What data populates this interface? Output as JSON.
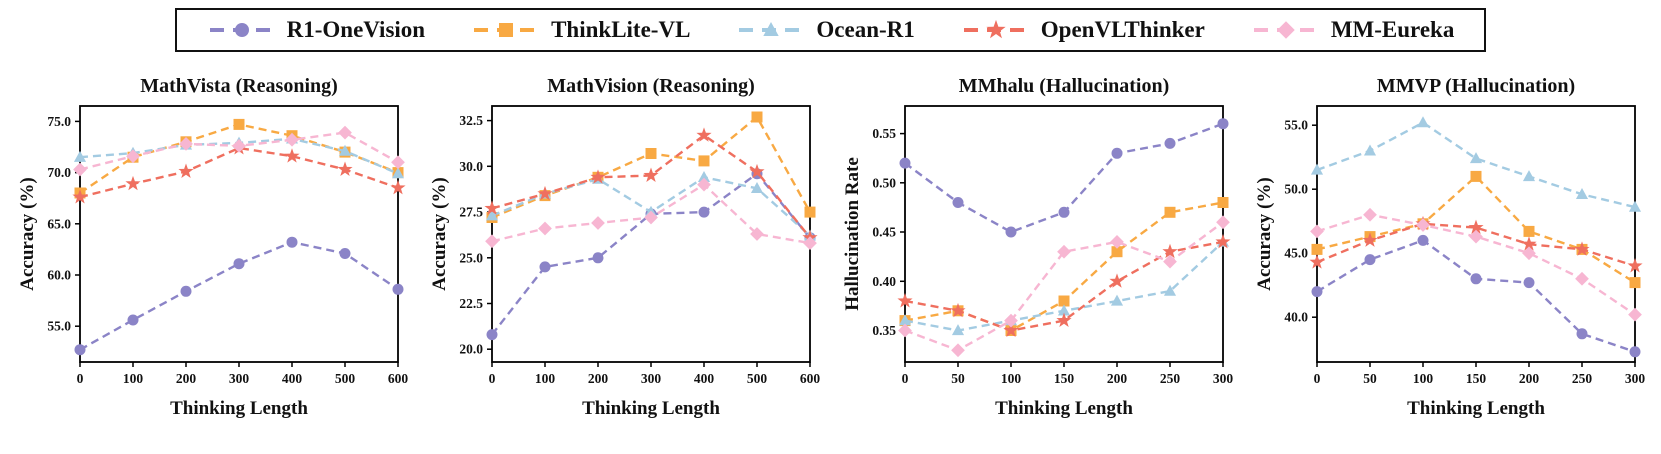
{
  "legend": {
    "items": [
      {
        "label": "R1-OneVision",
        "color": "#8b84c7",
        "marker": "circle"
      },
      {
        "label": "ThinkLite-VL",
        "color": "#f8a943",
        "marker": "square"
      },
      {
        "label": "Ocean-R1",
        "color": "#a3cbe2",
        "marker": "triangle"
      },
      {
        "label": "OpenVLThinker",
        "color": "#ef6f5f",
        "marker": "star"
      },
      {
        "label": "MM-Eureka",
        "color": "#f7b6d2",
        "marker": "diamond"
      }
    ]
  },
  "chart_data": [
    {
      "type": "line",
      "title": "MathVista (Reasoning)",
      "xlabel": "Thinking Length",
      "ylabel": "Accuracy (%)",
      "x": [
        0,
        100,
        200,
        300,
        400,
        500,
        600
      ],
      "ylim": [
        51.5,
        76.5
      ],
      "yticks": [
        55.0,
        60.0,
        65.0,
        70.0,
        75.0
      ],
      "ytick_labels": [
        "55.0",
        "60.0",
        "65.0",
        "70.0",
        "75.0"
      ],
      "series": [
        {
          "name": "R1-OneVision",
          "values": [
            52.7,
            55.6,
            58.4,
            61.1,
            63.2,
            62.1,
            58.6
          ]
        },
        {
          "name": "ThinkLite-VL",
          "values": [
            68.0,
            71.5,
            73.0,
            74.7,
            73.6,
            72.0,
            70.0
          ]
        },
        {
          "name": "Ocean-R1",
          "values": [
            71.5,
            71.9,
            72.7,
            72.9,
            73.3,
            72.1,
            69.9
          ]
        },
        {
          "name": "OpenVLThinker",
          "values": [
            67.6,
            68.9,
            70.1,
            72.4,
            71.6,
            70.3,
            68.5
          ]
        },
        {
          "name": "MM-Eureka",
          "values": [
            70.3,
            71.6,
            72.8,
            72.6,
            73.2,
            73.9,
            71.0
          ]
        }
      ]
    },
    {
      "type": "line",
      "title": "MathVision (Reasoning)",
      "xlabel": "Thinking Length",
      "ylabel": "Accuracy (%)",
      "x": [
        0,
        100,
        200,
        300,
        400,
        500,
        600
      ],
      "ylim": [
        19.3,
        33.3
      ],
      "yticks": [
        20.0,
        22.5,
        25.0,
        27.5,
        30.0,
        32.5
      ],
      "ytick_labels": [
        "20.0",
        "22.5",
        "25.0",
        "27.5",
        "30.0",
        "32.5"
      ],
      "series": [
        {
          "name": "R1-OneVision",
          "values": [
            20.8,
            24.5,
            25.0,
            27.4,
            27.5,
            29.6,
            26.1
          ]
        },
        {
          "name": "ThinkLite-VL",
          "values": [
            27.2,
            28.4,
            29.4,
            30.7,
            30.3,
            32.7,
            27.5
          ]
        },
        {
          "name": "Ocean-R1",
          "values": [
            27.3,
            28.5,
            29.3,
            27.5,
            29.4,
            28.8,
            26.2
          ]
        },
        {
          "name": "OpenVLThinker",
          "values": [
            27.7,
            28.5,
            29.4,
            29.5,
            31.7,
            29.7,
            26.1
          ]
        },
        {
          "name": "MM-Eureka",
          "values": [
            25.9,
            26.6,
            26.9,
            27.2,
            29.0,
            26.3,
            25.8
          ]
        }
      ]
    },
    {
      "type": "line",
      "title": "MMhalu (Hallucination)",
      "xlabel": "Thinking Length",
      "ylabel": "Hallucination Rate",
      "x": [
        0,
        50,
        100,
        150,
        200,
        250,
        300
      ],
      "ylim": [
        0.318,
        0.578
      ],
      "yticks": [
        0.35,
        0.4,
        0.45,
        0.5,
        0.55
      ],
      "ytick_labels": [
        "0.35",
        "0.40",
        "0.45",
        "0.50",
        "0.55"
      ],
      "series": [
        {
          "name": "R1-OneVision",
          "values": [
            0.52,
            0.48,
            0.45,
            0.47,
            0.53,
            0.54,
            0.56
          ]
        },
        {
          "name": "ThinkLite-VL",
          "values": [
            0.36,
            0.37,
            0.35,
            0.38,
            0.43,
            0.47,
            0.48
          ]
        },
        {
          "name": "Ocean-R1",
          "values": [
            0.36,
            0.35,
            0.36,
            0.37,
            0.38,
            0.39,
            0.44
          ]
        },
        {
          "name": "OpenVLThinker",
          "values": [
            0.38,
            0.37,
            0.35,
            0.36,
            0.4,
            0.43,
            0.44
          ]
        },
        {
          "name": "MM-Eureka",
          "values": [
            0.35,
            0.33,
            0.36,
            0.43,
            0.44,
            0.42,
            0.46
          ]
        }
      ]
    },
    {
      "type": "line",
      "title": "MMVP (Hallucination)",
      "xlabel": "Thinking Length",
      "ylabel": "Accuracy (%)",
      "x": [
        0,
        50,
        100,
        150,
        200,
        250,
        300
      ],
      "ylim": [
        36.5,
        56.5
      ],
      "yticks": [
        40.0,
        45.0,
        50.0,
        55.0
      ],
      "ytick_labels": [
        "40.0",
        "45.0",
        "50.0",
        "55.0"
      ],
      "series": [
        {
          "name": "R1-OneVision",
          "values": [
            42.0,
            44.5,
            46.0,
            43.0,
            42.7,
            38.7,
            37.3
          ]
        },
        {
          "name": "ThinkLite-VL",
          "values": [
            45.3,
            46.3,
            47.3,
            51.0,
            46.7,
            45.3,
            42.7
          ]
        },
        {
          "name": "Ocean-R1",
          "values": [
            51.5,
            53.0,
            55.2,
            52.4,
            51.0,
            49.6,
            48.6
          ]
        },
        {
          "name": "OpenVLThinker",
          "values": [
            44.3,
            46.0,
            47.3,
            47.0,
            45.7,
            45.3,
            44.0
          ]
        },
        {
          "name": "MM-Eureka",
          "values": [
            46.7,
            48.0,
            47.2,
            46.3,
            45.0,
            43.0,
            40.2
          ]
        }
      ]
    }
  ]
}
